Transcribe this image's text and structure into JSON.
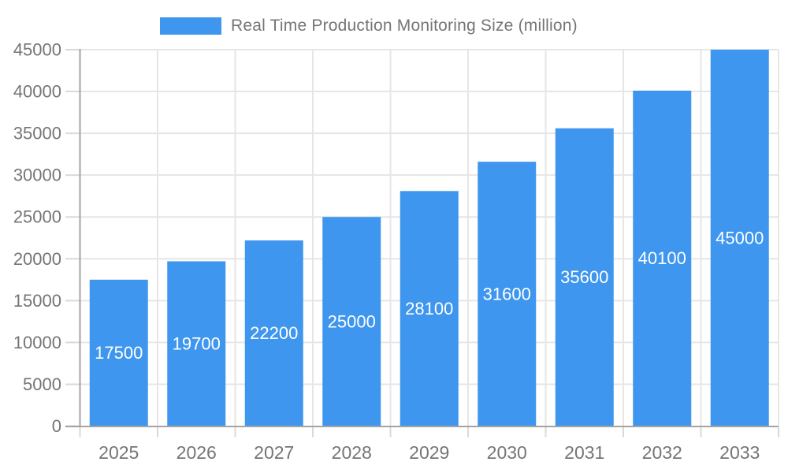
{
  "page": {
    "background_color": "#ffffff"
  },
  "legend": {
    "label": "Real Time Production Monitoring Size (million)",
    "swatch_color": "#3E96EE",
    "position": "top"
  },
  "chart_data": {
    "type": "bar",
    "title": "Real Time Production Monitoring Size (million)",
    "categories": [
      "2025",
      "2026",
      "2027",
      "2028",
      "2029",
      "2030",
      "2031",
      "2032",
      "2033"
    ],
    "values": [
      17500,
      19700,
      22200,
      25000,
      28100,
      31600,
      35600,
      40100,
      45000
    ],
    "xlabel": "",
    "ylabel": "",
    "ylim": [
      0,
      45000
    ],
    "ytick_step": 5000,
    "yticks": [
      0,
      5000,
      10000,
      15000,
      20000,
      25000,
      30000,
      35000,
      40000,
      45000
    ],
    "grid": true,
    "legend_position": "top",
    "bar_color": "#3E96EE",
    "value_label_color": "#ffffff",
    "axis_label_color": "#757575",
    "grid_color": "#e6e6e6",
    "tick_color": "#d9d9d9",
    "axis_line_color": "#a3a3a3"
  }
}
